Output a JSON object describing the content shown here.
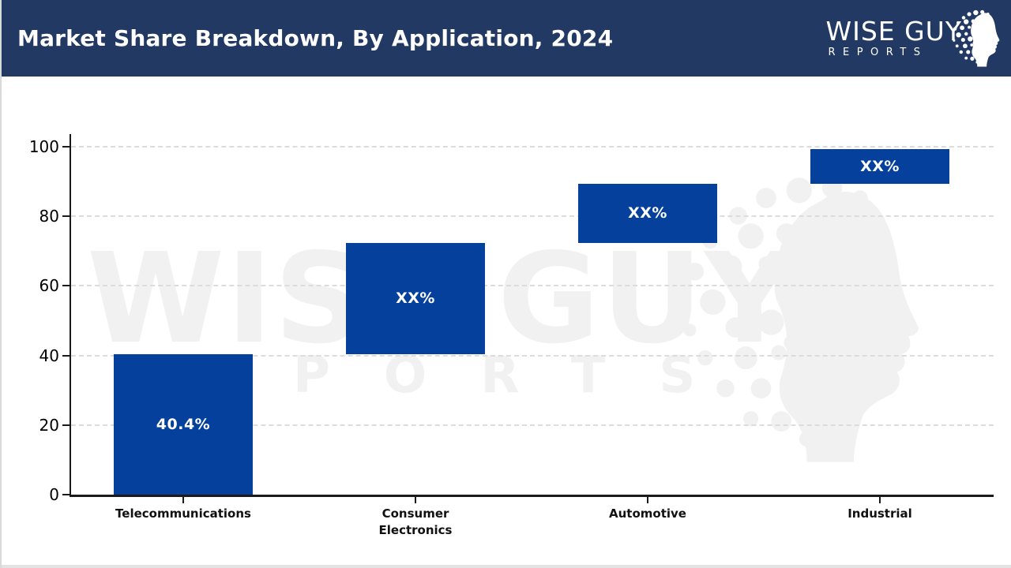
{
  "header": {
    "title": "Market Share Breakdown, By Application, 2024",
    "logo": {
      "line1": "WISE GUY",
      "line2": "REPORTS"
    }
  },
  "watermark": {
    "line1": "WISE GUY",
    "line2": "REPORTS"
  },
  "colors": {
    "header_bg": "#223a63",
    "bar": "#04409c",
    "grid": "#dcdcdc",
    "axis": "#1a1a1a",
    "watermark": "#f1f1f1",
    "bar_label_text": "#ffffff"
  },
  "chart_data": {
    "type": "bar",
    "subtype": "waterfall",
    "title": "Market Share Breakdown, By Application, 2024",
    "categories": [
      "Telecommunications",
      "Consumer\nElectronics",
      "Automotive",
      "Industrial"
    ],
    "series": [
      {
        "name": "Market Share (%)",
        "segments": [
          {
            "category": "Telecommunications",
            "start": 0,
            "end": 40.4,
            "label": "40.4%"
          },
          {
            "category": "Consumer Electronics",
            "start": 40.4,
            "end": 72.3,
            "label": "XX%"
          },
          {
            "category": "Automotive",
            "start": 72.3,
            "end": 89.4,
            "label": "XX%"
          },
          {
            "category": "Industrial",
            "start": 89.4,
            "end": 99.4,
            "label": "XX%"
          }
        ]
      }
    ],
    "xlabel": "",
    "ylabel": "",
    "ylim": [
      0,
      104
    ],
    "yticks": [
      0,
      20,
      40,
      60,
      80,
      100
    ],
    "grid": "horizontal-dashed",
    "legend": "none"
  }
}
